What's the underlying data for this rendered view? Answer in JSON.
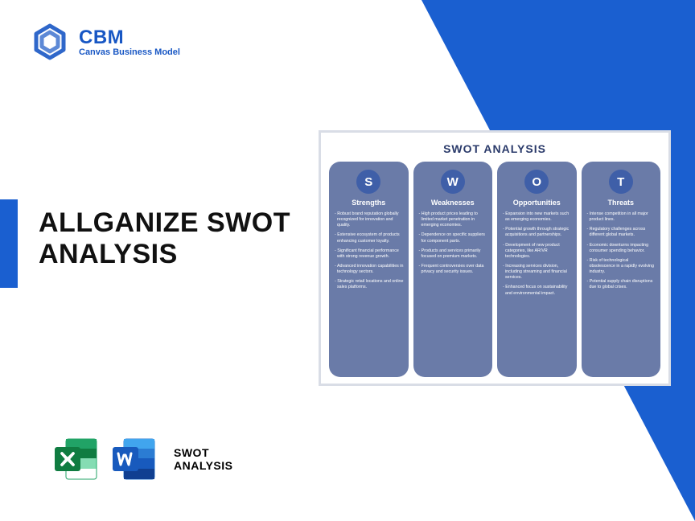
{
  "colors": {
    "brand_blue": "#1857c4",
    "triangle": "#1a5fd0",
    "accent_bar": "#1a5fd0",
    "excel_dark": "#107c41",
    "excel_light": "#21a366",
    "word_dark": "#185abd",
    "word_light": "#2b7cd3",
    "swot_col_bg": "#6a7ba8",
    "swot_circle": "#3f5fa8"
  },
  "logo": {
    "title": "CBM",
    "subtitle": "Canvas Business Model"
  },
  "main_title": "ALLGANIZE SWOT ANALYSIS",
  "file_label": "SWOT\nANALYSIS",
  "swot": {
    "title": "SWOT ANALYSIS",
    "columns": [
      {
        "letter": "S",
        "heading": "Strengths",
        "items": [
          "Robust brand reputation globally recognized for innovation and quality.",
          "Extensive ecosystem of products enhancing customer loyalty.",
          "Significant financial performance with strong revenue growth.",
          "Advanced innovation capabilities in technology sectors.",
          "Strategic retail locations and online sales platforms."
        ]
      },
      {
        "letter": "W",
        "heading": "Weaknesses",
        "items": [
          "High product prices leading to limited market penetration in emerging economies.",
          "Dependence on specific suppliers for component parts.",
          "Products and services primarily focused on premium markets.",
          "Frequent controversies over data privacy and security issues."
        ]
      },
      {
        "letter": "O",
        "heading": "Opportunities",
        "items": [
          "Expansion into new markets such as emerging economies.",
          "Potential growth through strategic acquisitions and partnerships.",
          "Development of new product categories, like AR/VR technologies.",
          "Increasing services division, including streaming and financial services.",
          "Enhanced focus on sustainability and environmental impact."
        ]
      },
      {
        "letter": "T",
        "heading": "Threats",
        "items": [
          "Intense competition in all major product lines.",
          "Regulatory challenges across different global markets.",
          "Economic downturns impacting consumer spending behavior.",
          "Risk of technological obsolescence in a rapidly evolving industry.",
          "Potential supply chain disruptions due to global crises."
        ]
      }
    ]
  }
}
